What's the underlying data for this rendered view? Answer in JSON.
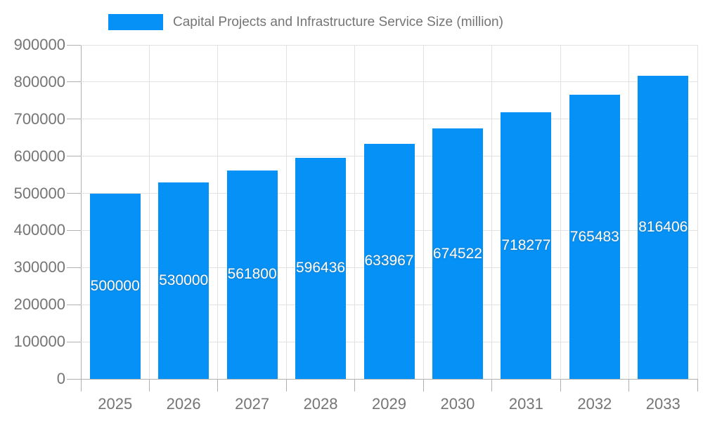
{
  "legend": {
    "label": "Capital Projects and Infrastructure Service Size (million)"
  },
  "colors": {
    "bar": "#0591f5",
    "axis_text": "#757575",
    "gridline": "#e2e2e2",
    "axis_line": "#b0b0b0",
    "bar_label_text": "#ffffff",
    "background": "#ffffff"
  },
  "chart_data": {
    "type": "bar",
    "title": "Capital Projects and Infrastructure Service Size (million)",
    "legend_entries": [
      "Capital Projects and Infrastructure Service Size (million)"
    ],
    "legend_position": "top",
    "categories": [
      "2025",
      "2026",
      "2027",
      "2028",
      "2029",
      "2030",
      "2031",
      "2032",
      "2033"
    ],
    "series": [
      {
        "name": "Capital Projects and Infrastructure Service Size (million)",
        "values": [
          500000,
          530000,
          561800,
          596436,
          633967,
          674522,
          718277,
          765483,
          816406
        ]
      }
    ],
    "data_labels": "white, centered inside bars",
    "xlabel": "",
    "ylabel": "",
    "ylim": [
      0,
      900000
    ],
    "ytick_step": 100000,
    "ytick_labels": [
      "0",
      "100000",
      "200000",
      "300000",
      "400000",
      "500000",
      "600000",
      "700000",
      "800000",
      "900000"
    ],
    "grid": "horizontal and vertical gridlines on"
  }
}
